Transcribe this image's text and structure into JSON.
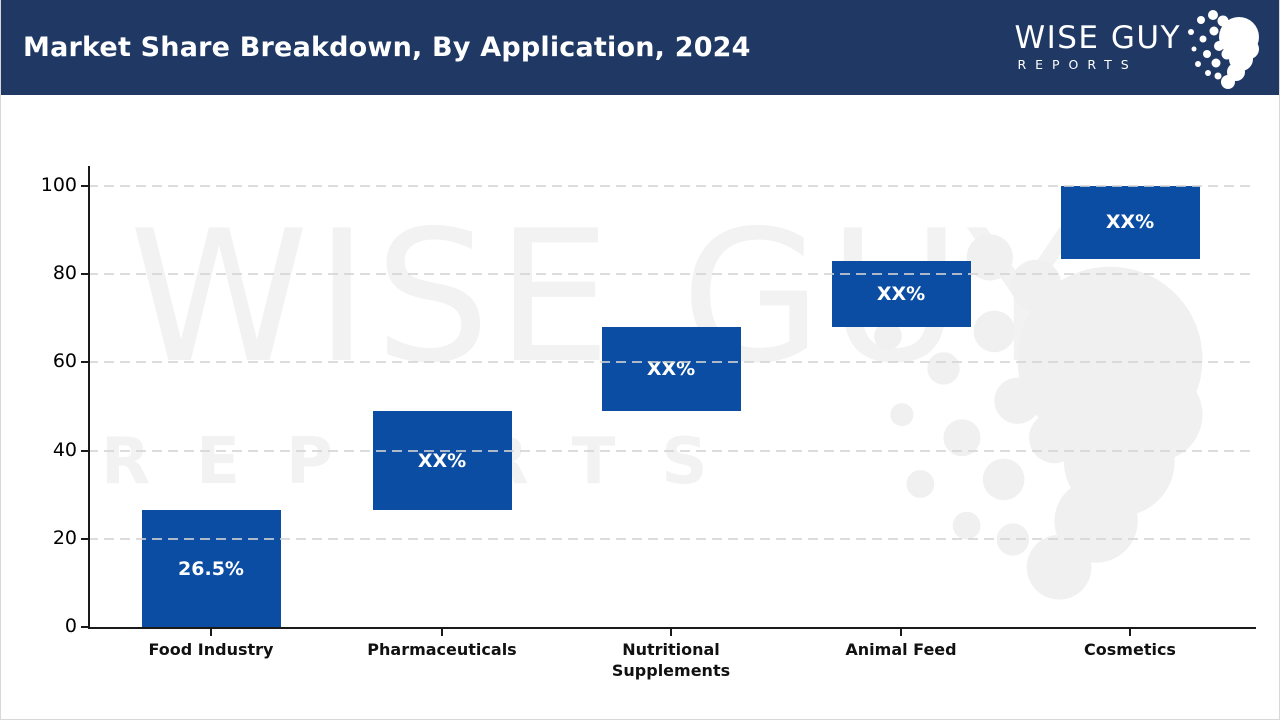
{
  "header": {
    "title": "Market Share Breakdown, By Application, 2024",
    "bg_color": "#1f3864",
    "logo": {
      "line1": "WISE GUY",
      "line2": "REPORTS"
    }
  },
  "watermark": {
    "line1": "WISE GUY",
    "line2": "REPORTS"
  },
  "chart_data": {
    "type": "bar",
    "subtype": "floating-segment (waterfall-style market share)",
    "title": "Market Share Breakdown, By Application, 2024",
    "categories": [
      "Food Industry",
      "Pharmaceuticals",
      "Nutritional Supplements",
      "Animal Feed",
      "Cosmetics"
    ],
    "categories_display": [
      [
        "Food Industry"
      ],
      [
        "Pharmaceuticals"
      ],
      [
        "Nutritional",
        "Supplements"
      ],
      [
        "Animal Feed"
      ],
      [
        "Cosmetics"
      ]
    ],
    "bars": [
      {
        "category": "Food Industry",
        "start": 0,
        "end": 26.5,
        "label": "26.5%"
      },
      {
        "category": "Pharmaceuticals",
        "start": 26.5,
        "end": 49,
        "label": "XX%"
      },
      {
        "category": "Nutritional Supplements",
        "start": 49,
        "end": 68,
        "label": "XX%"
      },
      {
        "category": "Animal Feed",
        "start": 68,
        "end": 83,
        "label": "XX%"
      },
      {
        "category": "Cosmetics",
        "start": 83.5,
        "end": 100,
        "label": "XX%"
      }
    ],
    "bar_color": "#0b4da2",
    "bar_label_color": "#ffffff",
    "xlabel": "",
    "ylabel": "",
    "ylim": [
      0,
      100
    ],
    "yticks": [
      0,
      20,
      40,
      60,
      80,
      100
    ],
    "grid": "horizontal dashed, drawn over bars",
    "grid_color": "#d9d9d9",
    "legend": "none"
  }
}
